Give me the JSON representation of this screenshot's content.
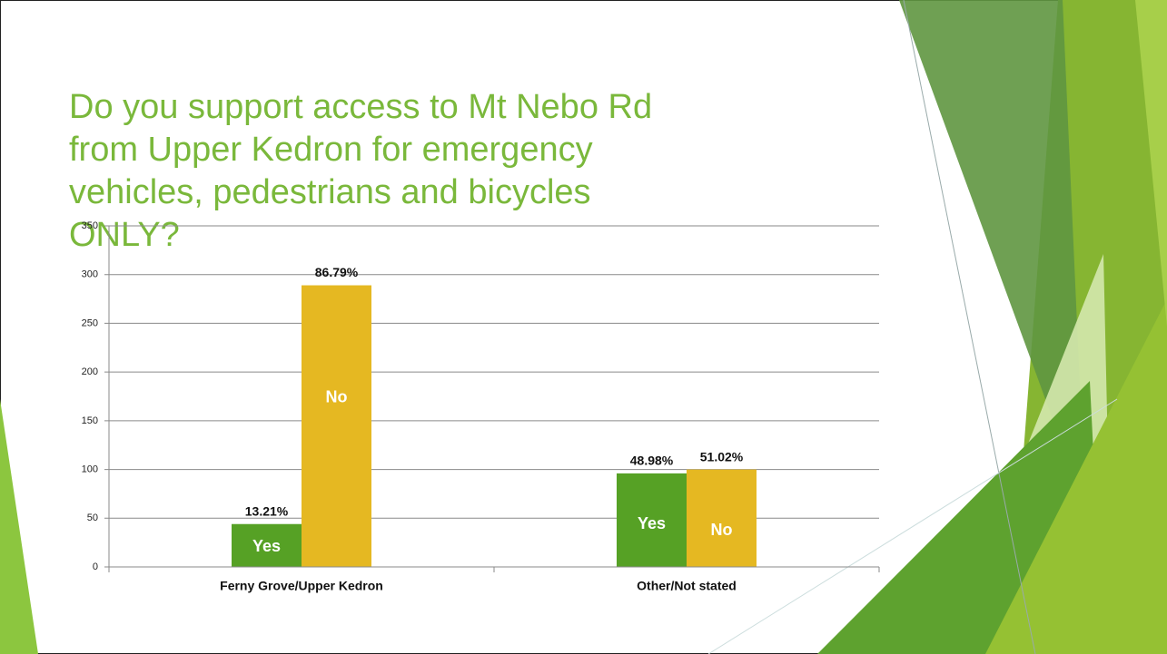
{
  "chart_data": {
    "type": "bar",
    "title": "Do you support access to Mt Nebo Rd from Upper Kedron for emergency vehicles, pedestrians and bicycles ONLY?",
    "categories": [
      "Ferny Grove/Upper Kedron",
      "Other/Not stated"
    ],
    "series": [
      {
        "name": "Yes",
        "color": "#56a125",
        "values": [
          44,
          96
        ],
        "data_labels": [
          {
            "value": 13.21,
            "label": "13.21%"
          },
          {
            "value": 48.98,
            "label": "48.98%"
          }
        ]
      },
      {
        "name": "No",
        "color": "#e5b822",
        "values": [
          289,
          100
        ],
        "data_labels": [
          {
            "value": 86.79,
            "label": "86.79%"
          },
          {
            "value": 51.02,
            "label": "51.02%"
          }
        ]
      }
    ],
    "ylim": [
      0,
      350
    ],
    "yticks": [
      0,
      50,
      100,
      150,
      200,
      250,
      300,
      350
    ],
    "grid": true
  }
}
